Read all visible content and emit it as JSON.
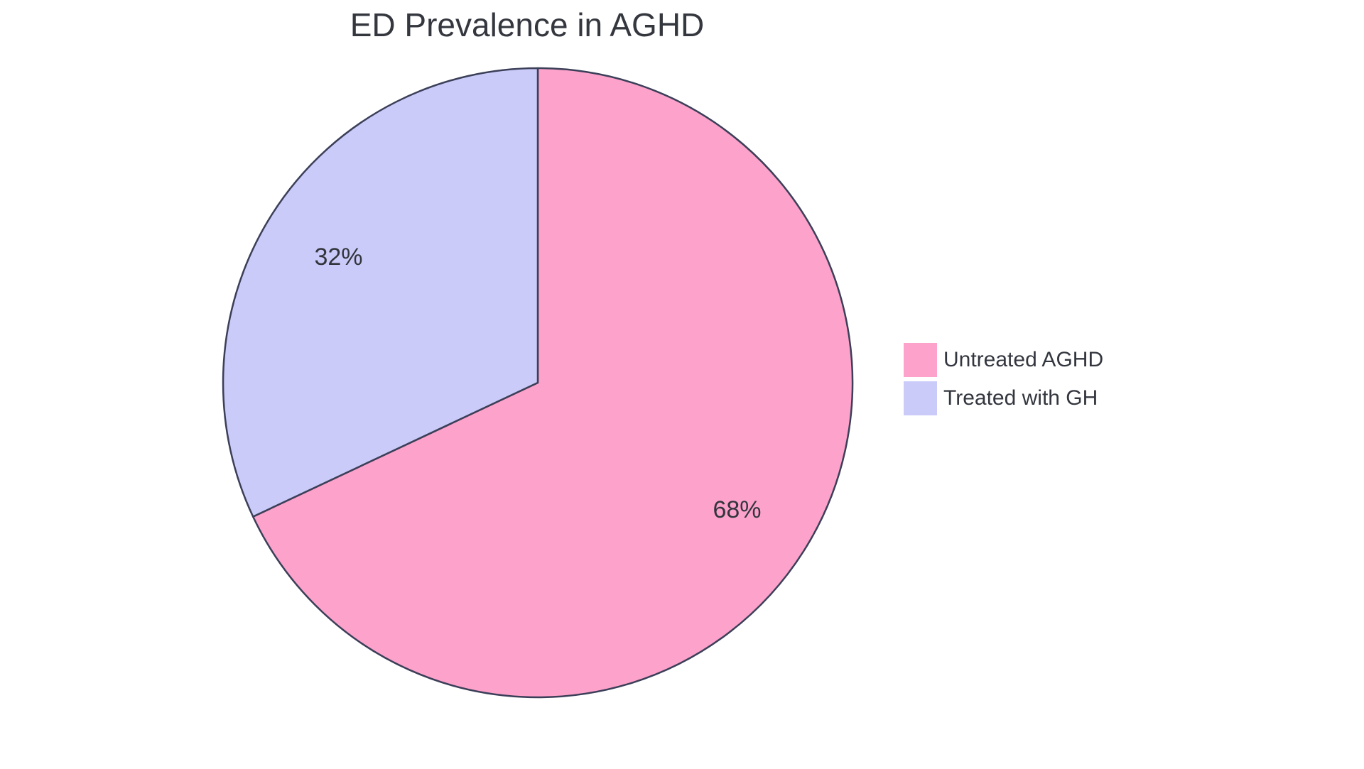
{
  "title": "ED Prevalence in AGHD",
  "chart_data": {
    "type": "pie",
    "title": "ED Prevalence in AGHD",
    "direction": "clockwise",
    "start_angle_deg": 0,
    "legend_position": "right",
    "stroke_color": "#3B3F58",
    "slices": [
      {
        "label": "Untreated AGHD",
        "value": 68,
        "pct_label": "68%",
        "color": "#FCA2CB"
      },
      {
        "label": "Treated with GH",
        "value": 32,
        "pct_label": "32%",
        "color": "#CACBF8"
      }
    ]
  }
}
